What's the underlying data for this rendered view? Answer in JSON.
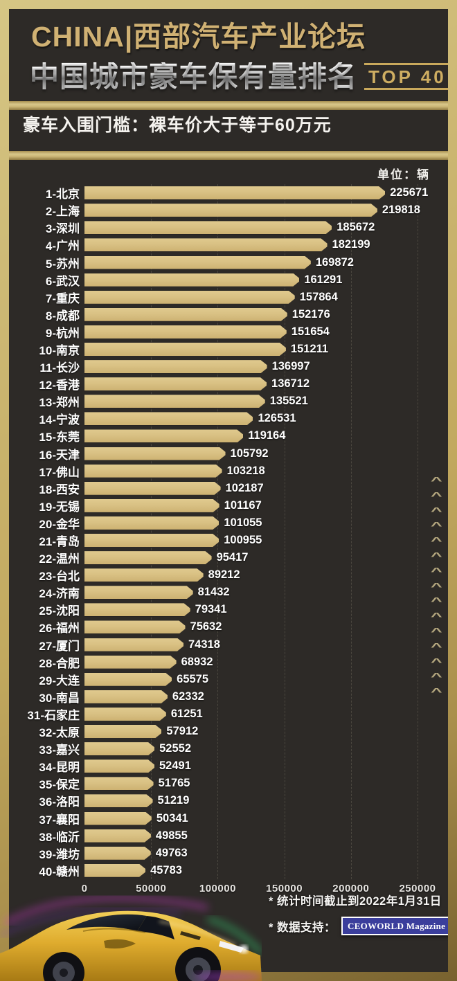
{
  "header": {
    "forum_title": "CHINA|西部汽车产业论坛",
    "main_title": "中国城市豪车保有量排名",
    "badge": "TOP 40",
    "threshold": "豪车入围门槛：裸车价大于等于60万元"
  },
  "chart": {
    "unit_label": "单位：辆"
  },
  "chart_data": {
    "type": "bar",
    "orientation": "horizontal",
    "title": "中国城市豪车保有量排名 TOP 40",
    "subtitle": "豪车入围门槛：裸车价大于等于60万元",
    "unit": "辆",
    "xlim": [
      0,
      250000
    ],
    "x_ticks": [
      0,
      50000,
      100000,
      150000,
      200000,
      250000
    ],
    "grid": "dashed-vertical",
    "legend": "none",
    "bar_color": "#d9c184",
    "categories": [
      "1-北京",
      "2-上海",
      "3-深圳",
      "4-广州",
      "5-苏州",
      "6-武汉",
      "7-重庆",
      "8-成都",
      "9-杭州",
      "10-南京",
      "11-长沙",
      "12-香港",
      "13-郑州",
      "14-宁波",
      "15-东莞",
      "16-天津",
      "17-佛山",
      "18-西安",
      "19-无锡",
      "20-金华",
      "21-青岛",
      "22-温州",
      "23-台北",
      "24-济南",
      "25-沈阳",
      "26-福州",
      "27-厦门",
      "28-合肥",
      "29-大连",
      "30-南昌",
      "31-石家庄",
      "32-太原",
      "33-嘉兴",
      "34-昆明",
      "35-保定",
      "36-洛阳",
      "37-襄阳",
      "38-临沂",
      "39-潍坊",
      "40-赣州"
    ],
    "values": [
      225671,
      219818,
      185672,
      182199,
      169872,
      161291,
      157864,
      152176,
      151654,
      151211,
      136997,
      136712,
      135521,
      126531,
      119164,
      105792,
      103218,
      102187,
      101167,
      101055,
      100955,
      95417,
      89212,
      81432,
      79341,
      75632,
      74318,
      68932,
      65575,
      62332,
      61251,
      57912,
      52552,
      52491,
      51765,
      51219,
      50341,
      49855,
      49763,
      45783
    ]
  },
  "footer": {
    "note_time": "* 统计时间截止到2022年1月31日",
    "note_support": "* 数据支持：",
    "logo_text": "CEOWORLD Magazine"
  },
  "decor": {
    "chevron_icon": "^",
    "chevron_count": 15
  },
  "colors": {
    "frame_gold": "#c8b26a",
    "panel_bg": "#2d2a27",
    "title_gold": "#d0b173",
    "divider_gold": "#cdb978",
    "bar_gold": "#d9c184",
    "value_text": "#ffffff",
    "logo_blue": "#3b3e9c",
    "car_yellow": "#e2b33c"
  }
}
